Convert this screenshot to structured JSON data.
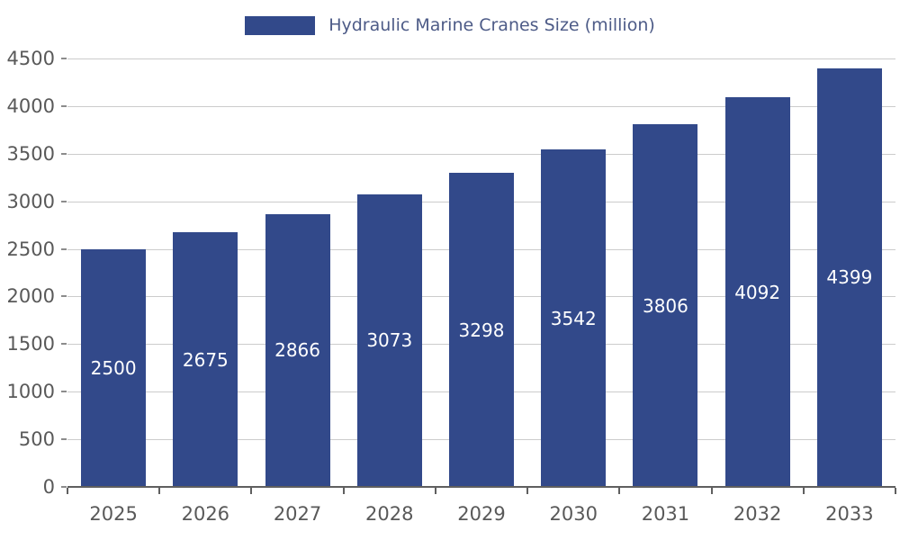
{
  "chart_data": {
    "type": "bar",
    "title": "Hydraulic Marine Cranes Size (million)",
    "categories": [
      "2025",
      "2026",
      "2027",
      "2028",
      "2029",
      "2030",
      "2031",
      "2032",
      "2033"
    ],
    "series": [
      {
        "name": "Hydraulic Marine Cranes Size (million)",
        "values": [
          2500,
          2675,
          2866,
          3073,
          3298,
          3542,
          3806,
          4092,
          4399
        ]
      }
    ],
    "xlabel": "",
    "ylabel": "",
    "ylim": [
      0,
      4500
    ],
    "ytick_step": 500,
    "grid": true,
    "legend_position": "top-center",
    "value_labels": "inside-center",
    "colors": {
      "bar": "#32498a",
      "value_label": "#ffffff",
      "axis_label": "#595959",
      "legend_text": "#4d5b87",
      "gridline": "#cccccc",
      "axis_line": "#5f5f5f"
    }
  }
}
